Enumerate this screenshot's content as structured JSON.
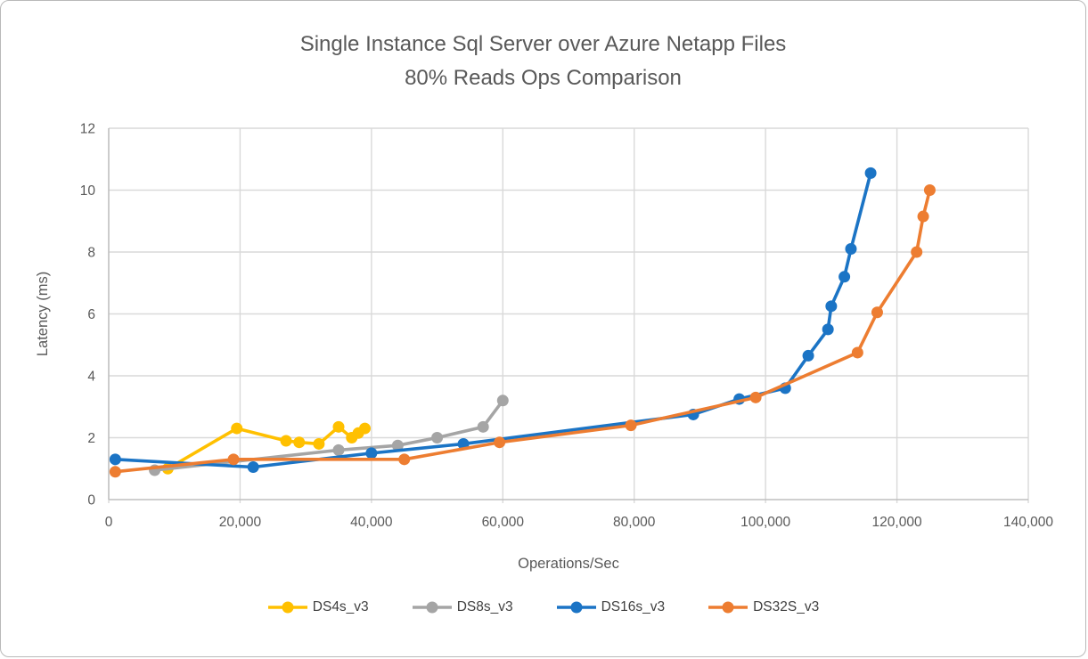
{
  "styles": {
    "background": "#FFFFFF",
    "border_color": "#B9B9B9",
    "grid_color": "#D9D9D9",
    "axis_color": "#BFBFBF",
    "text_color": "#595959",
    "legend_text_color": "#404040"
  },
  "chart_data": {
    "type": "line",
    "title": "Single Instance Sql Server over Azure Netapp Files 80% Reads Ops Comparison",
    "title_lines": [
      "Single Instance Sql Server over Azure Netapp Files",
      "80% Reads Ops Comparison"
    ],
    "xlabel": "Operations/Sec",
    "ylabel": "Latency (ms)",
    "xlim": [
      0,
      140000
    ],
    "ylim": [
      0,
      12
    ],
    "x_ticks": [
      0,
      20000,
      40000,
      60000,
      80000,
      100000,
      120000,
      140000
    ],
    "x_tick_labels": [
      "0",
      "20,000",
      "40,000",
      "60,000",
      "80,000",
      "100,000",
      "120,000",
      "140,000"
    ],
    "y_ticks": [
      0,
      2,
      4,
      6,
      8,
      10,
      12
    ],
    "y_tick_labels": [
      "0",
      "2",
      "4",
      "6",
      "8",
      "10",
      "12"
    ],
    "grid": true,
    "legend_position": "bottom",
    "series": [
      {
        "name": "DS4s_v3",
        "color": "#FFC000",
        "points": [
          [
            9000,
            1.0
          ],
          [
            19500,
            2.3
          ],
          [
            27000,
            1.9
          ],
          [
            29000,
            1.85
          ],
          [
            32000,
            1.8
          ],
          [
            35000,
            2.35
          ],
          [
            37000,
            2.0
          ],
          [
            38000,
            2.15
          ],
          [
            39000,
            2.3
          ]
        ]
      },
      {
        "name": "DS8s_v3",
        "color": "#A5A5A5",
        "points": [
          [
            7000,
            0.95
          ],
          [
            35000,
            1.6
          ],
          [
            44000,
            1.75
          ],
          [
            50000,
            2.0
          ],
          [
            57000,
            2.35
          ],
          [
            60000,
            3.2
          ]
        ]
      },
      {
        "name": "DS16s_v3",
        "color": "#1B74C5",
        "points": [
          [
            1000,
            1.3
          ],
          [
            22000,
            1.05
          ],
          [
            40000,
            1.5
          ],
          [
            54000,
            1.8
          ],
          [
            89000,
            2.75
          ],
          [
            96000,
            3.25
          ],
          [
            103000,
            3.6
          ],
          [
            106500,
            4.65
          ],
          [
            109500,
            5.5
          ],
          [
            110000,
            6.25
          ],
          [
            112000,
            7.2
          ],
          [
            113000,
            8.1
          ],
          [
            116000,
            10.55
          ]
        ]
      },
      {
        "name": "DS32S_v3",
        "color": "#ED7D31",
        "points": [
          [
            1000,
            0.9
          ],
          [
            19000,
            1.3
          ],
          [
            45000,
            1.3
          ],
          [
            59500,
            1.85
          ],
          [
            79500,
            2.4
          ],
          [
            98500,
            3.3
          ],
          [
            114000,
            4.75
          ],
          [
            117000,
            6.05
          ],
          [
            123000,
            8.0
          ],
          [
            124000,
            9.15
          ],
          [
            125000,
            10.0
          ]
        ]
      }
    ]
  }
}
